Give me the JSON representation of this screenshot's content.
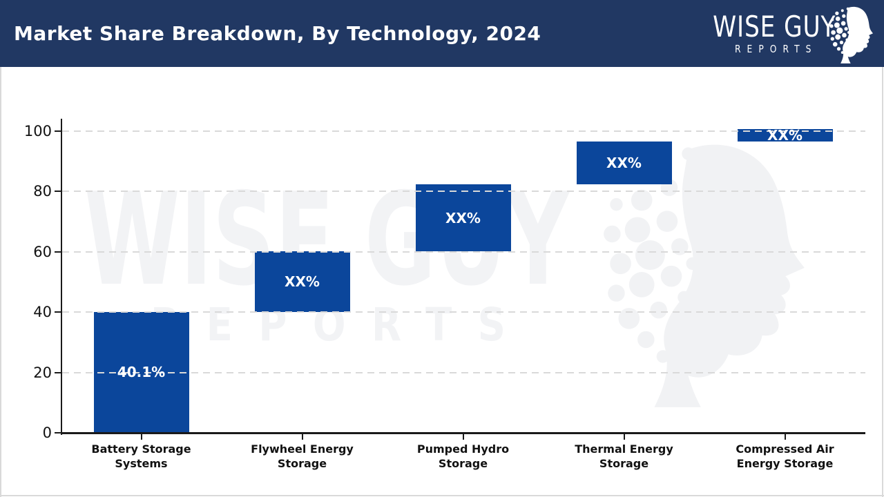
{
  "header": {
    "title": "Market Share Breakdown, By Technology, 2024",
    "bg_color": "#213863",
    "logo": {
      "name": "WISE GUY",
      "subname": "REPORTS"
    }
  },
  "watermark": {
    "line1": "WISE GUY",
    "line2": "REPORTS"
  },
  "chart_data": {
    "type": "bar",
    "subtype": "waterfall",
    "title": "Market Share Breakdown, By Technology, 2024",
    "xlabel": "",
    "ylabel": "",
    "categories": [
      "Battery Storage Systems",
      "Flywheel Energy Storage",
      "Pumped Hydro Storage",
      "Thermal Energy Storage",
      "Compressed Air Energy Storage"
    ],
    "categories_wrapped": [
      [
        "Battery Storage",
        "Systems"
      ],
      [
        "Flywheel Energy",
        "Storage"
      ],
      [
        "Pumped Hydro",
        "Storage"
      ],
      [
        "Thermal Energy",
        "Storage"
      ],
      [
        "Compressed Air",
        "Energy Storage"
      ]
    ],
    "segments": [
      {
        "start": 0,
        "end": 40.1,
        "label": "40.1%"
      },
      {
        "start": 40.1,
        "end": 60.1,
        "label": "XX%"
      },
      {
        "start": 60.1,
        "end": 82.3,
        "label": "XX%"
      },
      {
        "start": 82.3,
        "end": 96.4,
        "label": "XX%"
      },
      {
        "start": 96.4,
        "end": 100.5,
        "label": "XX%"
      }
    ],
    "values_increment": [
      40.1,
      20.0,
      22.2,
      14.1,
      4.1
    ],
    "y_ticks": [
      0,
      20,
      40,
      60,
      80,
      100
    ],
    "ylim": [
      0,
      104
    ],
    "grid": "dashed-horizontal-over-bars",
    "legend": "none",
    "bar_color": "#0b469b",
    "bar_label_color": "#ffffff",
    "axis_color": "#1a1a1a",
    "gridline_color": "#d9d9d9"
  }
}
